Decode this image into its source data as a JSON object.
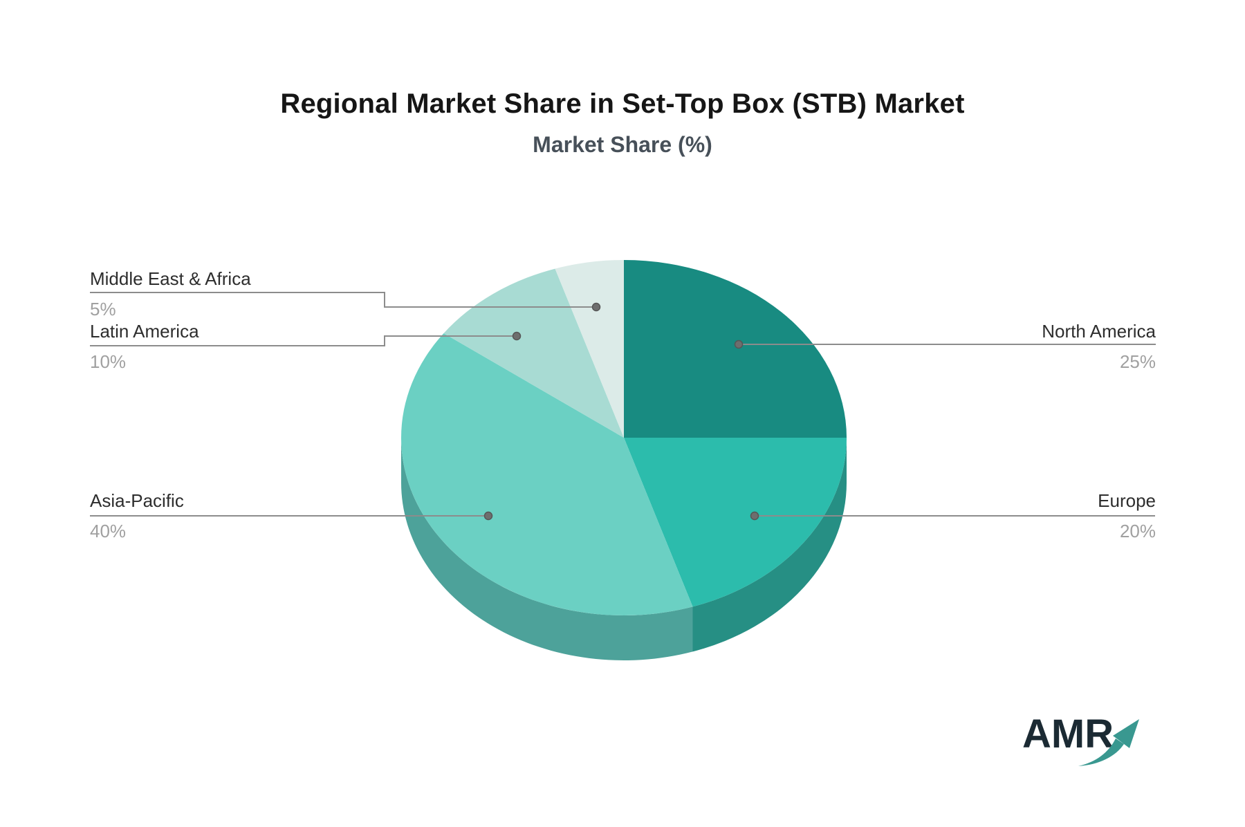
{
  "header": {
    "title": "Regional Market Share in Set-Top Box (STB) Market",
    "subtitle": "Market Share (%)"
  },
  "chart_data": {
    "type": "pie",
    "style": "3d-pie",
    "title": "Regional Market Share in Set-Top Box (STB) Market",
    "subtitle": "Market Share (%)",
    "unit": "%",
    "start_angle_deg": 0,
    "direction": "clockwise",
    "legend": "none",
    "regions": [
      {
        "name": "North America",
        "value": 25,
        "pct_label": "25%",
        "color": "#188b81",
        "label_side": "right"
      },
      {
        "name": "Europe",
        "value": 20,
        "pct_label": "20%",
        "color": "#2cbcac",
        "side_color": "#268f84",
        "label_side": "right"
      },
      {
        "name": "Asia-Pacific",
        "value": 40,
        "pct_label": "40%",
        "color": "#6bd0c3",
        "side_color": "#4da29a",
        "label_side": "left"
      },
      {
        "name": "Latin America",
        "value": 10,
        "pct_label": "10%",
        "color": "#a8dbd3",
        "label_side": "left"
      },
      {
        "name": "Middle East & Africa",
        "value": 5,
        "pct_label": "5%",
        "color": "#dcebe8",
        "label_side": "left"
      }
    ]
  },
  "logo": {
    "text": "AMR"
  },
  "colors": {
    "background": "#ffffff",
    "title": "#161616",
    "subtitle": "#475059",
    "label": "#2d2d2d",
    "pct": "#a0a0a0",
    "leader_line": "#8c8c8c",
    "dot": "#6e6e6e",
    "logo_text": "#1b2a33",
    "logo_swoosh": "#399890"
  }
}
